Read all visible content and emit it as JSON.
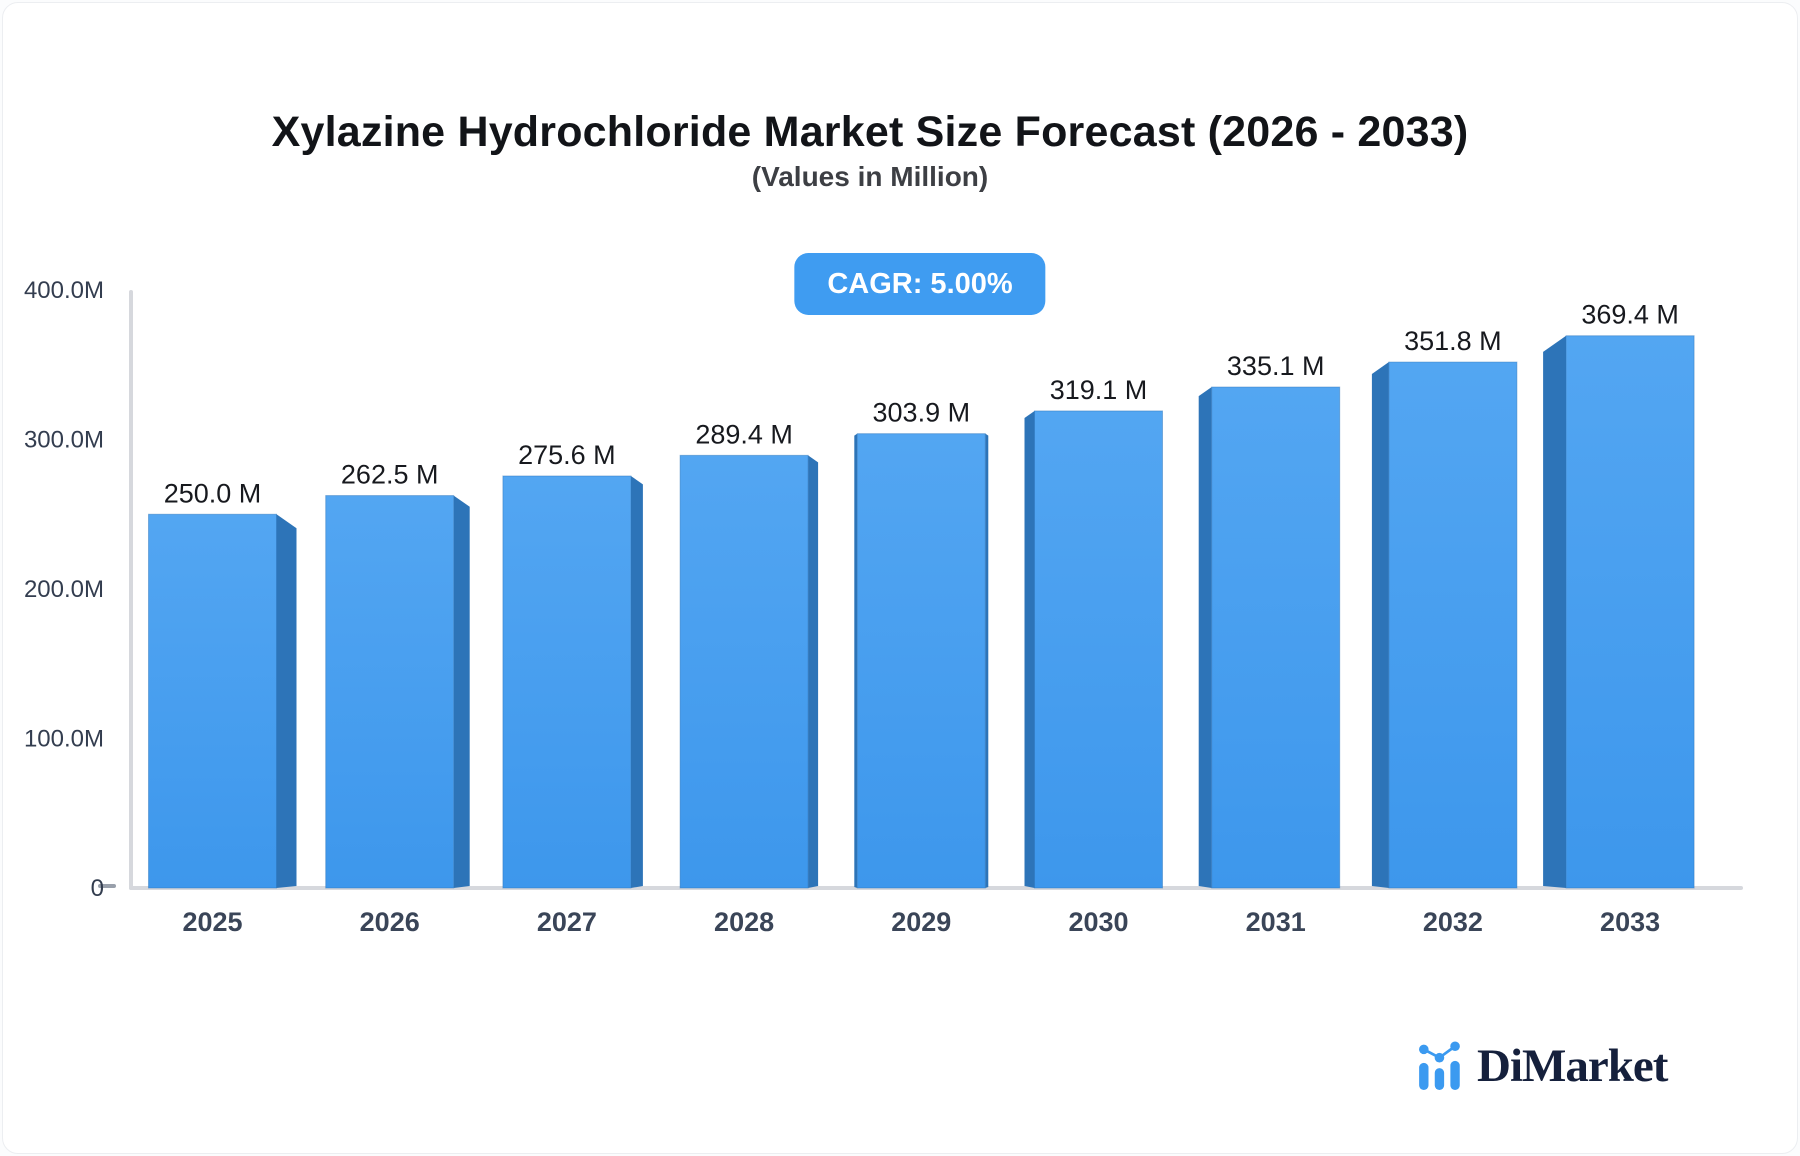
{
  "title": "Xylazine Hydrochloride Market Size Forecast (2026 - 2033)",
  "subtitle": "(Values in Million)",
  "cagr_badge": "CAGR: 5.00%",
  "brand": {
    "name": "DiMarket",
    "icon": "bar-line-chart-icon"
  },
  "colors": {
    "bar_face_top": "#53a6f2",
    "bar_face_bottom": "#3d97ec",
    "bar_side": "#2d74b8",
    "accent": "#3f9cf1",
    "axis": "#d6d8dd",
    "zero_tick": "#99a0ab",
    "value_text": "#17191e",
    "axis_text": "#3a4558",
    "logo_navy": "#15203c",
    "logo_blue": "#3b9af0"
  },
  "chart_data": {
    "type": "bar",
    "title": "Xylazine Hydrochloride Market Size Forecast (2026 - 2033)",
    "subtitle": "(Values in Million)",
    "categories": [
      "2025",
      "2026",
      "2027",
      "2028",
      "2029",
      "2030",
      "2031",
      "2032",
      "2033"
    ],
    "values": [
      250.0,
      262.5,
      275.6,
      289.4,
      303.9,
      319.1,
      335.1,
      351.8,
      369.4
    ],
    "value_labels": [
      "250.0 M",
      "262.5 M",
      "275.6 M",
      "289.4 M",
      "303.9 M",
      "319.1 M",
      "335.1 M",
      "351.8 M",
      "369.4 M"
    ],
    "unit": "Million",
    "cagr": "5.00%",
    "xlabel": "",
    "ylabel": "",
    "ylim": [
      0,
      400
    ],
    "y_ticks": [
      {
        "value": 0,
        "label": "0"
      },
      {
        "value": 100,
        "label": "100.0M"
      },
      {
        "value": 200,
        "label": "200.0M"
      },
      {
        "value": 300,
        "label": "300.0M"
      },
      {
        "value": 400,
        "label": "400.0M"
      }
    ],
    "grid": false,
    "legend": null,
    "style": "3d-perspective-bars"
  }
}
